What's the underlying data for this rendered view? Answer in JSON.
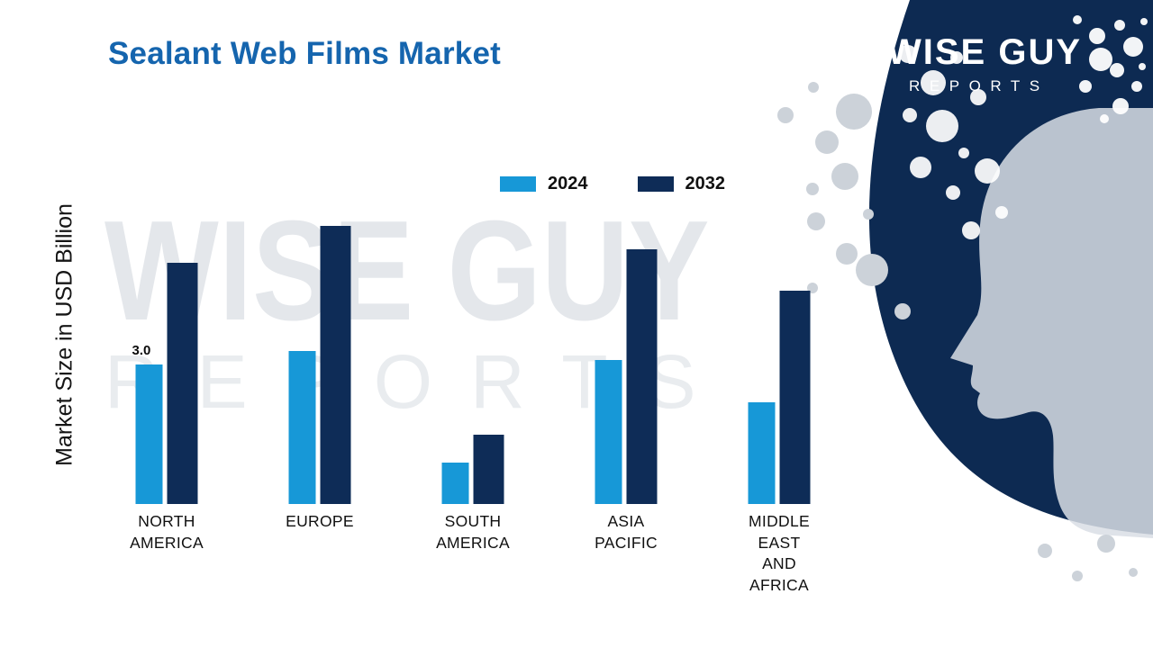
{
  "page": {
    "title": "Sealant Web Films Market"
  },
  "logo": {
    "title": "WISE GUY",
    "subtitle": "REPORTS"
  },
  "watermark": {
    "line1": "WISE GUY",
    "line2": "REPORTS"
  },
  "colors": {
    "title_blue": "#1565ae",
    "bar_2024": "#1798d7",
    "bar_2032": "#0e2c57",
    "logo_bg": "#0d2a52",
    "watermark_gray": "#e4e7eb"
  },
  "chart_data": {
    "type": "bar",
    "title": "Sealant Web Films Market",
    "xlabel": "",
    "ylabel": "Market Size in USD Billion",
    "categories": [
      "NORTH AMERICA",
      "EUROPE",
      "SOUTH AMERICA",
      "ASIA PACIFIC",
      "MIDDLE EAST AND AFRICA"
    ],
    "series": [
      {
        "name": "2024",
        "color": "#1798d7",
        "values": [
          3.0,
          3.3,
          0.9,
          3.1,
          2.2
        ]
      },
      {
        "name": "2032",
        "color": "#0e2c57",
        "values": [
          5.2,
          6.0,
          1.5,
          5.5,
          4.6
        ]
      }
    ],
    "annotations": [
      {
        "series": "2024",
        "category_index": 0,
        "text": "3.0"
      }
    ],
    "ylim": [
      0,
      6.5
    ],
    "grid": false,
    "legend_position": "top"
  }
}
